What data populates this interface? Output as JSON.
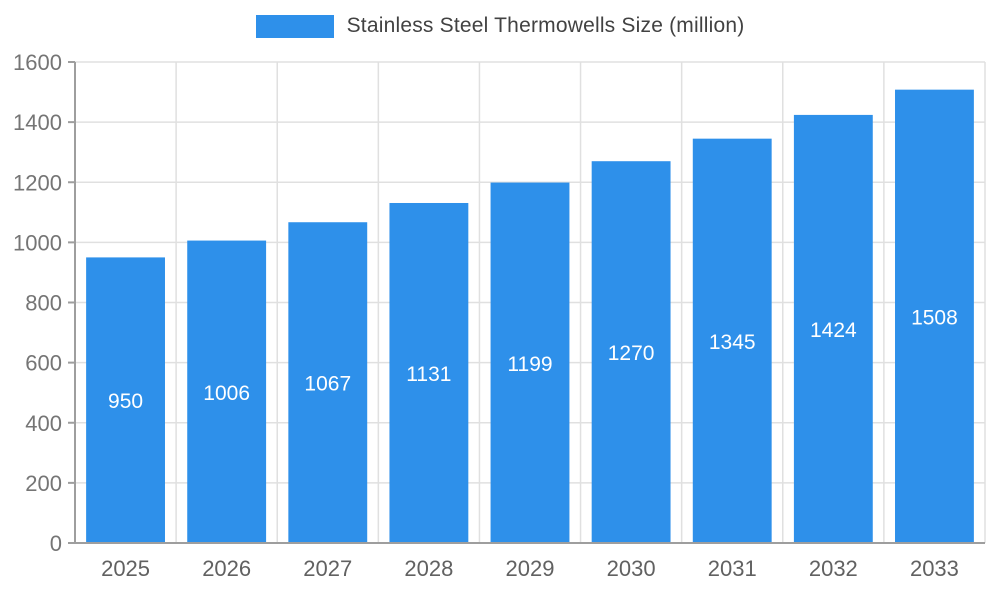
{
  "chart_data": {
    "type": "bar",
    "title": "Stainless Steel Thermowells Size (million)",
    "categories": [
      "2025",
      "2026",
      "2027",
      "2028",
      "2029",
      "2030",
      "2031",
      "2032",
      "2033"
    ],
    "values": [
      950,
      1006,
      1067,
      1131,
      1199,
      1270,
      1345,
      1424,
      1508
    ],
    "ylim": [
      0,
      1600
    ],
    "yticks": [
      0,
      200,
      400,
      600,
      800,
      1000,
      1200,
      1400,
      1600
    ],
    "grid": true,
    "legend_position": "top",
    "bar_color": "#2E90EA",
    "bar_label_color": "#ffffff",
    "grid_color": "#e0e0e0",
    "axis_color": "#9e9e9e",
    "x_tick_color": "#616161",
    "y_tick_color": "#757575"
  }
}
